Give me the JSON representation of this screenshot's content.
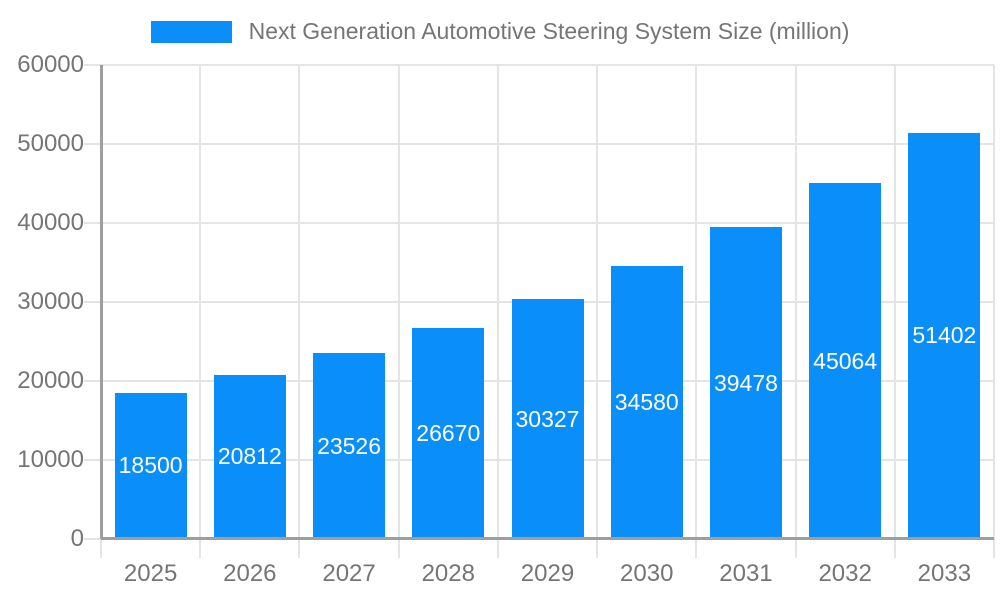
{
  "legend": {
    "label": "Next Generation Automotive Steering System Size (million)"
  },
  "colors": {
    "bar": "#0a8ef9",
    "grid": "#e4e4e4",
    "axis": "#9e9e9e",
    "tick_text": "#757575",
    "value_label_text": "#ffffff"
  },
  "chart_data": {
    "type": "bar",
    "title": "Next Generation Automotive Steering System Size (million)",
    "categories": [
      "2025",
      "2026",
      "2027",
      "2028",
      "2029",
      "2030",
      "2031",
      "2032",
      "2033"
    ],
    "values": [
      18500,
      20812,
      23526,
      26670,
      30327,
      34580,
      39478,
      45064,
      51402
    ],
    "xlabel": "",
    "ylabel": "",
    "ylim": [
      0,
      60000
    ],
    "yticks": [
      0,
      10000,
      20000,
      30000,
      40000,
      50000,
      60000
    ],
    "grid": "on",
    "legend_position": "top-center",
    "value_labels": "inside-center"
  }
}
